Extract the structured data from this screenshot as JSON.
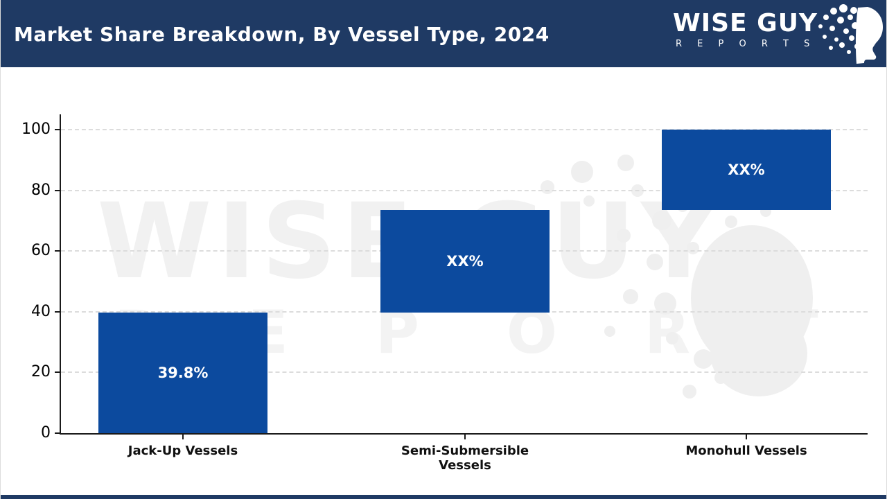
{
  "header": {
    "title": "Market Share Breakdown, By Vessel Type, 2024",
    "logo_line1": "WISE GUY",
    "logo_line2": "R E P O R T S",
    "bg_color": "#1f3a64"
  },
  "watermark": {
    "line1": "WISE GUY",
    "line2": "R E P O R T S"
  },
  "chart_data": {
    "type": "bar",
    "subtype": "waterfall",
    "title": "Market Share Breakdown, By Vessel Type, 2024",
    "categories": [
      "Jack-Up Vessels",
      "Semi-Submersible Vessels",
      "Monohull Vessels"
    ],
    "segments": [
      {
        "category": "Jack-Up Vessels",
        "start": 0,
        "end": 39.8,
        "label": "39.8%"
      },
      {
        "category": "Semi-Submersible Vessels",
        "start": 39.8,
        "end": 73.5,
        "label": "XX%"
      },
      {
        "category": "Monohull Vessels",
        "start": 73.5,
        "end": 100,
        "label": "XX%"
      }
    ],
    "yticks": [
      0,
      20,
      40,
      60,
      80,
      100
    ],
    "ylim": [
      0,
      105
    ],
    "xlabel": "",
    "ylabel": "",
    "bar_color": "#0c4a9e",
    "grid": "horizontal-dashed",
    "gridline_color": "#dcdcdc",
    "legend": null
  }
}
